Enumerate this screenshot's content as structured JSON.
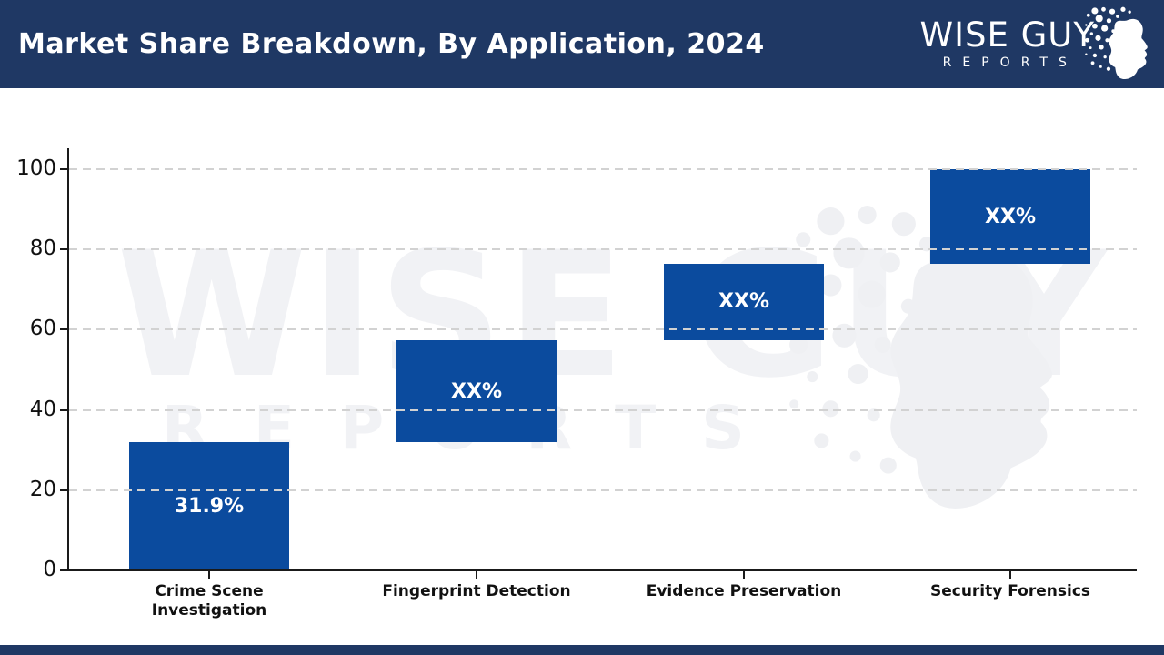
{
  "header": {
    "title": "Market Share Breakdown, By Application, 2024",
    "logo": {
      "line1": "WISE GUY",
      "line2": "REPORTS"
    }
  },
  "watermark": {
    "line1": "WISE GUY",
    "line2": "REPORTS"
  },
  "colors": {
    "header_bg": "#1f3864",
    "footer_bg": "#1f3864",
    "bar": "#0b4b9e",
    "bar_label": "#ffffff",
    "gridline": "#d2d2d2",
    "axis": "#1a1a1a",
    "watermark": "#f1f2f5"
  },
  "chart_data": {
    "type": "bar",
    "subtype": "waterfall",
    "title": "Market Share Breakdown, By Application, 2024",
    "xlabel": "",
    "ylabel": "",
    "ylim": [
      0,
      105
    ],
    "y_ticks": [
      0,
      20,
      40,
      60,
      80,
      100
    ],
    "grid": "horizontal-dashed",
    "legend": "none",
    "categories": [
      "Crime Scene Investigation",
      "Fingerprint Detection",
      "Evidence Preservation",
      "Security Forensics"
    ],
    "segments": [
      {
        "category": "Crime Scene Investigation",
        "start": 0,
        "end": 31.9,
        "label": "31.9%"
      },
      {
        "category": "Fingerprint Detection",
        "start": 31.9,
        "end": 57.4,
        "label": "XX%"
      },
      {
        "category": "Evidence Preservation",
        "start": 57.4,
        "end": 76.4,
        "label": "XX%"
      },
      {
        "category": "Security Forensics",
        "start": 76.4,
        "end": 100,
        "label": "XX%"
      }
    ]
  }
}
